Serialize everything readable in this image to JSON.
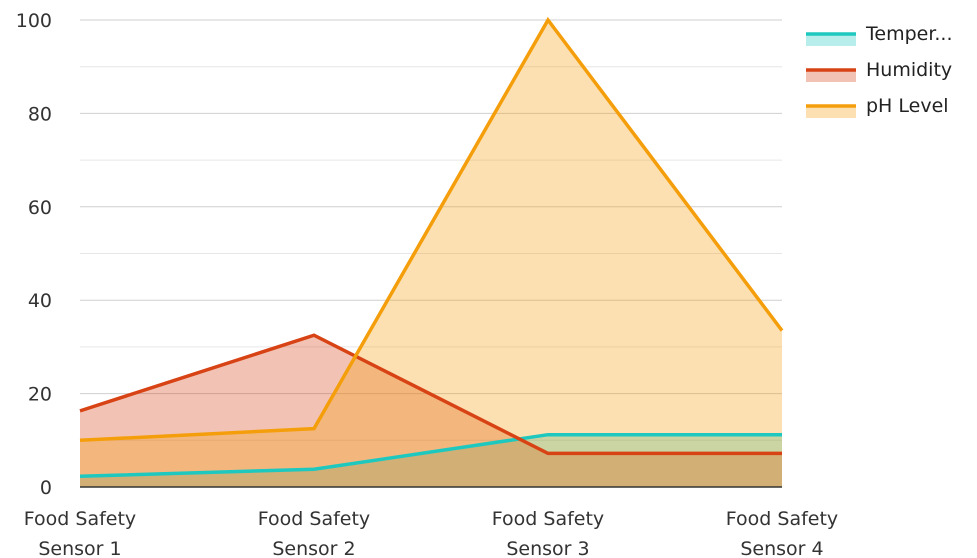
{
  "chart_data": {
    "type": "area",
    "categories": [
      [
        "Food Safety",
        "Sensor 1"
      ],
      [
        "Food Safety",
        "Sensor 2"
      ],
      [
        "Food Safety",
        "Sensor 3"
      ],
      [
        "Food Safety",
        "Sensor 4"
      ]
    ],
    "series": [
      {
        "name": "Temper...",
        "values": [
          2.3,
          3.8,
          11.2,
          11.2
        ],
        "color": "#1ec8bf"
      },
      {
        "name": "Humidity",
        "values": [
          16.3,
          32.5,
          7.2,
          7.2
        ],
        "color": "#d84315"
      },
      {
        "name": "pH Level",
        "values": [
          10.0,
          12.5,
          100,
          33.5
        ],
        "color": "#f59e0b"
      }
    ],
    "ylim": [
      0,
      100
    ],
    "yticks": [
      0,
      20,
      40,
      60,
      80,
      100
    ],
    "grid": true,
    "legend": "top-right",
    "title": "",
    "xlabel": "",
    "ylabel": ""
  }
}
